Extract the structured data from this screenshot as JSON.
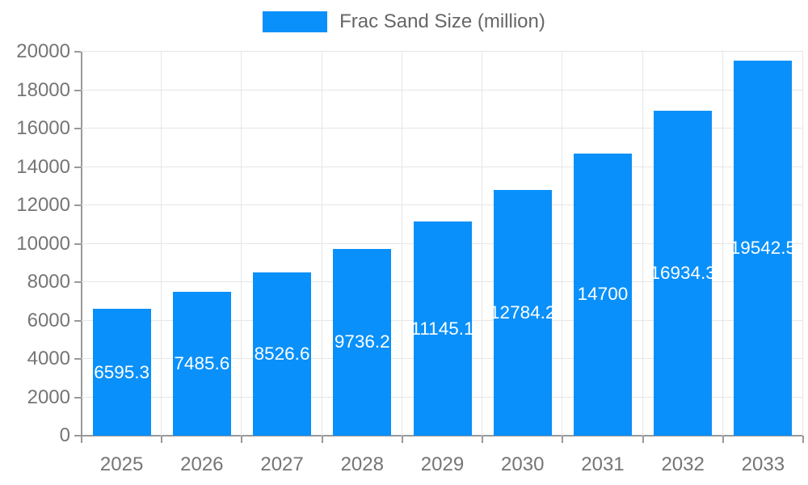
{
  "chart_data": {
    "type": "bar",
    "title": "Frac Sand Size (million)",
    "legend": {
      "label": "Frac Sand Size (million)",
      "position": "top-center"
    },
    "categories": [
      "2025",
      "2026",
      "2027",
      "2028",
      "2029",
      "2030",
      "2031",
      "2032",
      "2033"
    ],
    "values": [
      6595.3,
      7485.6,
      8526.6,
      9736.2,
      11145.1,
      12784.2,
      14700,
      16934.3,
      19542.5
    ],
    "bar_labels": [
      "6595.3",
      "7485.6",
      "8526.6",
      "9736.2",
      "11145.1",
      "12784.2",
      "14700",
      "16934.3",
      "19542.5"
    ],
    "xlabel": "",
    "ylabel": "",
    "ylim": [
      0,
      20000
    ],
    "ytick_step": 2000,
    "ytick_labels": [
      "0",
      "2000",
      "4000",
      "6000",
      "8000",
      "10000",
      "12000",
      "14000",
      "16000",
      "18000",
      "20000"
    ],
    "grid": true,
    "colors": {
      "bar": "#0990fa",
      "grid": "#e6e6e6",
      "axis": "#999999",
      "axis_label": "#757575",
      "legend_text": "#666666",
      "bar_label": "#ffffff",
      "background": "#ffffff"
    }
  }
}
